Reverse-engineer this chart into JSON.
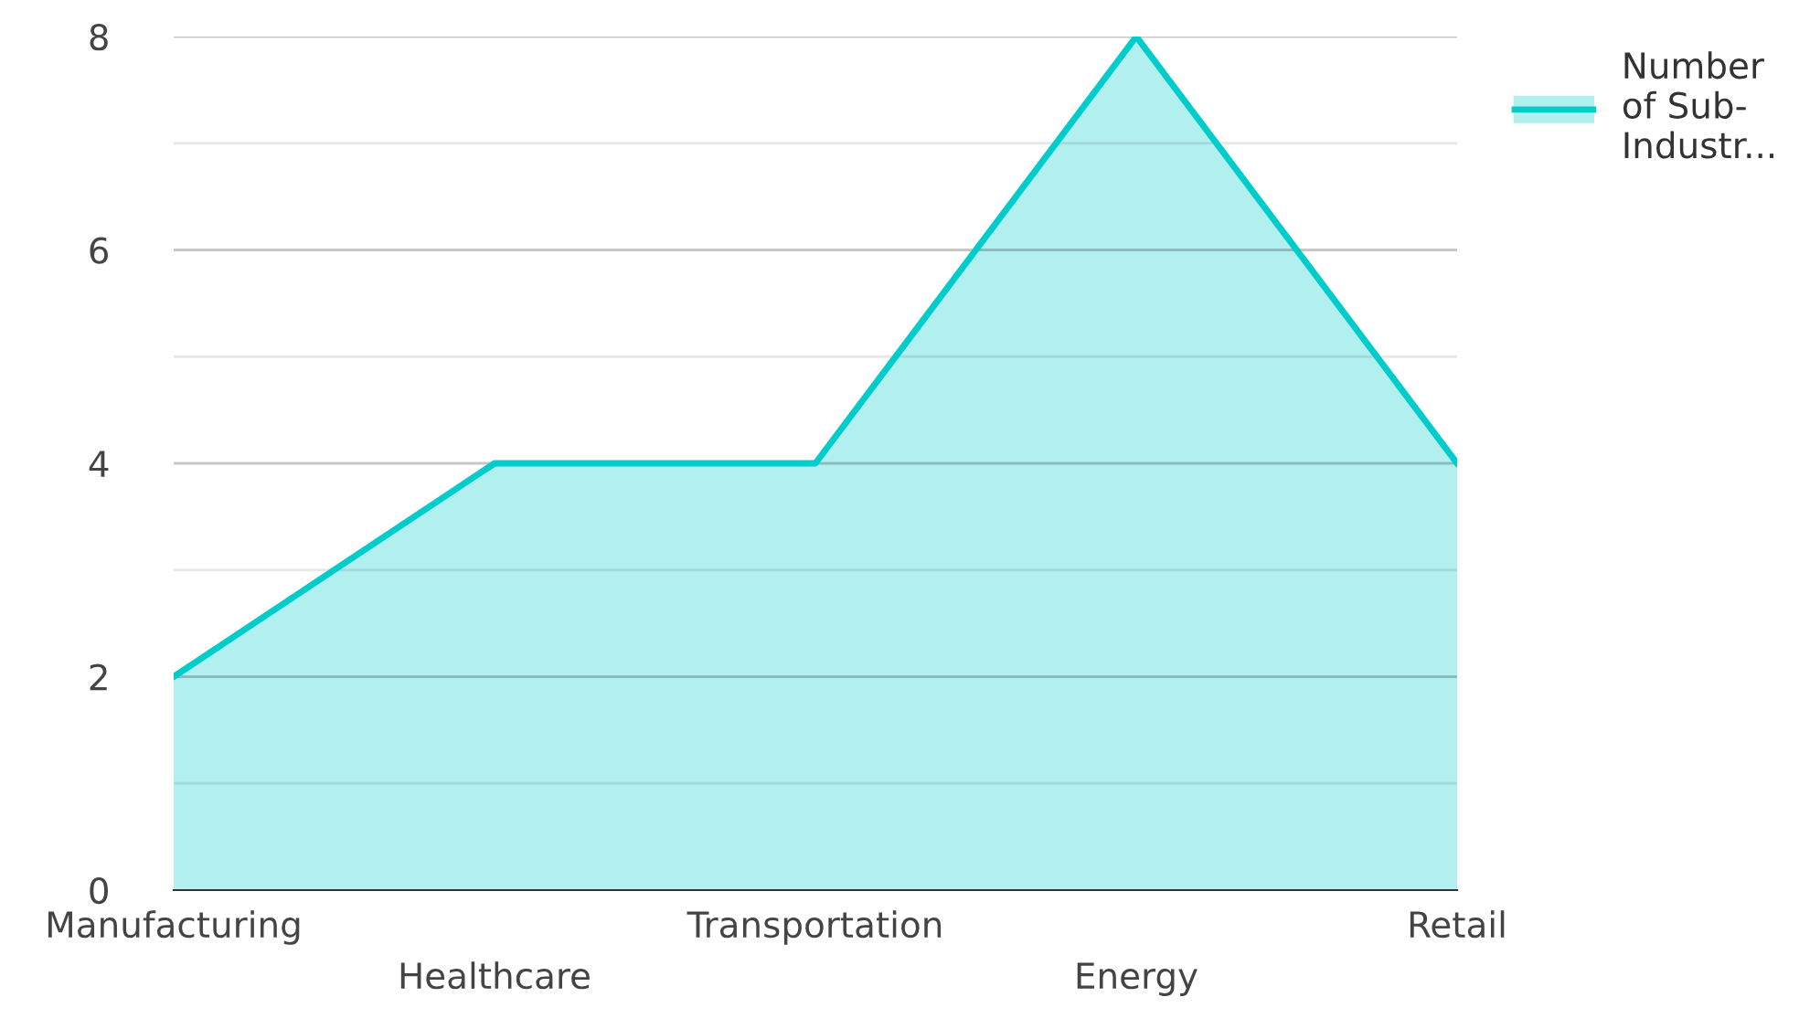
{
  "chart_data": {
    "type": "area",
    "categories": [
      "Manufacturing",
      "Healthcare",
      "Transportation",
      "Energy",
      "Retail"
    ],
    "series": [
      {
        "name": "Number of Sub-Industr...",
        "color": "#00cccc",
        "values": [
          2,
          4,
          4,
          8,
          4
        ]
      }
    ],
    "ylim": [
      0,
      8
    ],
    "yticks": [
      0,
      {
        "value": 1,
        "label": null
      },
      2,
      {
        "value": 3,
        "label": null
      },
      4,
      {
        "value": 5,
        "label": null
      },
      6,
      {
        "value": 7,
        "label": null
      },
      8
    ],
    "grid": "y",
    "legend": "top right"
  }
}
